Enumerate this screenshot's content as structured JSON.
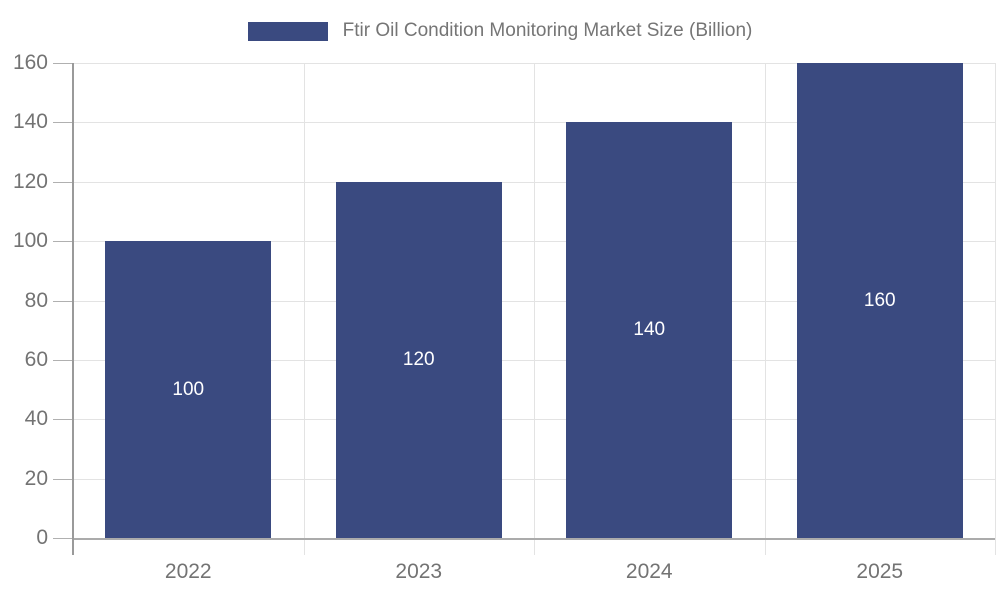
{
  "chart_data": {
    "type": "bar",
    "title": "Ftir Oil Condition Monitoring Market Size (Billion)",
    "categories": [
      "2022",
      "2023",
      "2024",
      "2025"
    ],
    "series": [
      {
        "name": "Ftir Oil Condition Monitoring Market Size (Billion)",
        "values": [
          100,
          120,
          140,
          160
        ]
      }
    ],
    "bar_value_labels": [
      "100",
      "120",
      "140",
      "160"
    ],
    "xlabel": "",
    "ylabel": "",
    "ylim": [
      0,
      160
    ],
    "yticks": [
      0,
      20,
      40,
      60,
      80,
      100,
      120,
      140,
      160
    ],
    "grid": true,
    "legend_position": "top"
  },
  "style": {
    "bar_color": "#3a4a80",
    "value_label_color": "#ffffff",
    "grid_color": "#e3e3e3",
    "y_axis_color": "#9a9a9a",
    "x_axis_color": "#ababab",
    "tick_color": "#b0b0b0",
    "text_color": "#737373",
    "legend_text_color": "#757575",
    "background_color": "#ffffff"
  }
}
